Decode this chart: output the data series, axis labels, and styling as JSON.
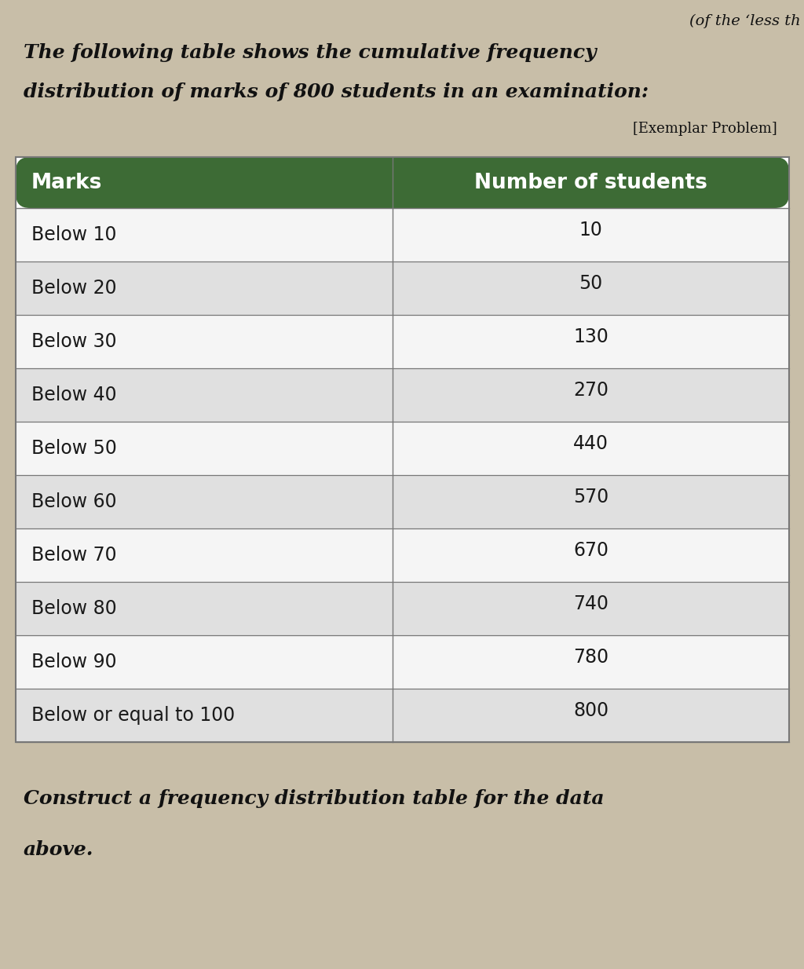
{
  "title_line1": "The following table shows the cumulative frequency",
  "title_line2": "distribution of marks of 800 students in an examination:",
  "title_line3": "[Exemplar Problem]",
  "top_right_text": "(of the ‘less th",
  "header_col1": "Marks",
  "header_col2": "Number of students",
  "rows": [
    [
      "Below 10",
      "10"
    ],
    [
      "Below 20",
      "50"
    ],
    [
      "Below 30",
      "130"
    ],
    [
      "Below 40",
      "270"
    ],
    [
      "Below 50",
      "440"
    ],
    [
      "Below 60",
      "570"
    ],
    [
      "Below 70",
      "670"
    ],
    [
      "Below 80",
      "740"
    ],
    [
      "Below 90",
      "780"
    ],
    [
      "Below or equal to 100",
      "800"
    ]
  ],
  "footer_line1": "Construct a frequency distribution table for the data",
  "footer_line2": "above.",
  "header_bg_color": "#3d6b35",
  "header_text_color": "#ffffff",
  "row_bg_white": "#f5f5f5",
  "row_bg_gray": "#e0e0e0",
  "row_text_color": "#1a1a1a",
  "border_color": "#777777",
  "page_bg_color": "#c8bea8",
  "title_text_color": "#111111",
  "footer_text_color": "#111111",
  "table_content_bg": "#ffffff"
}
